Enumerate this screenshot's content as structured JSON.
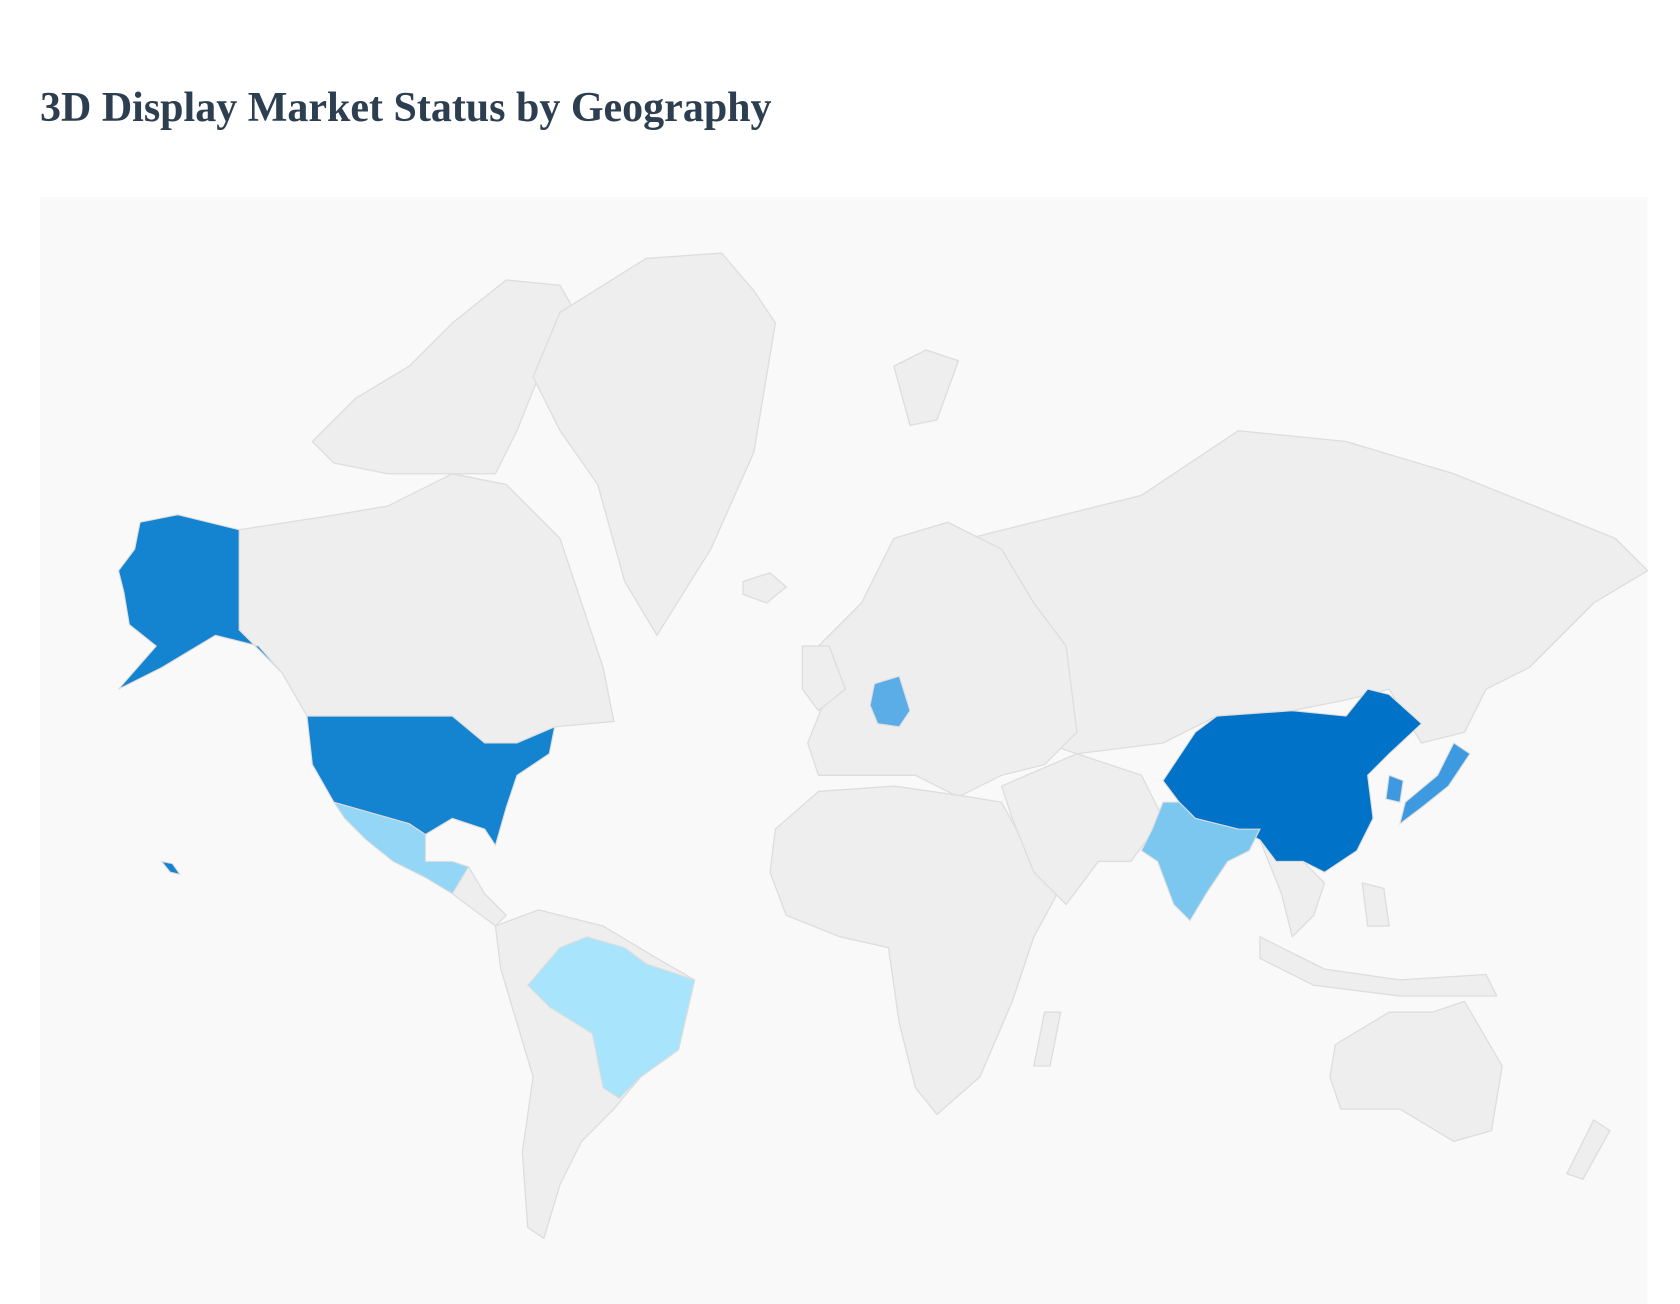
{
  "page": {
    "title": "3D Display Market Status by Geography"
  },
  "map": {
    "background_color": "#f9f9f9",
    "default_land_color": "#eeeeee",
    "border_color": "#dddddd",
    "highlighted_regions": [
      {
        "id": "china",
        "color": "#0073c9"
      },
      {
        "id": "united-states",
        "color": "#1584d0"
      },
      {
        "id": "japan",
        "color": "#3d9ae0"
      },
      {
        "id": "south-korea",
        "color": "#3d9ae0"
      },
      {
        "id": "germany",
        "color": "#5aade6"
      },
      {
        "id": "india",
        "color": "#7cc7f0"
      },
      {
        "id": "mexico",
        "color": "#94d6f6"
      },
      {
        "id": "brazil",
        "color": "#a8e4fc"
      }
    ]
  }
}
